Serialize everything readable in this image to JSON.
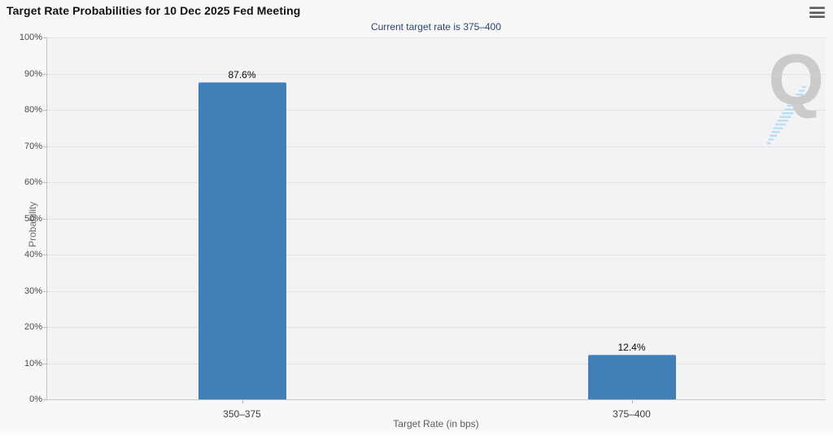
{
  "header": {
    "title": "Target Rate Probabilities for 10 Dec 2025 Fed Meeting",
    "menu_icon": "hamburger-menu"
  },
  "subtitle": "Current target rate is 375–400",
  "watermark_letter": "Q",
  "colors": {
    "bar": "#4080b8",
    "title_text": "#111111",
    "subtitle_text": "#2e4272",
    "axis_text": "#4a4a4a",
    "grid": "#d2d2d5",
    "plot_bg": "#f3f3f5",
    "page_bg": "#f8f8f9",
    "watermark_gray": "#cbcbcd",
    "watermark_blue": "#b9def3"
  },
  "chart_data": {
    "type": "bar",
    "title": "Target Rate Probabilities for 10 Dec 2025 Fed Meeting",
    "subtitle": "Current target rate is 375–400",
    "categories": [
      "350–375",
      "375–400"
    ],
    "values": [
      87.6,
      12.4
    ],
    "value_labels": [
      "87.6%",
      "12.4%"
    ],
    "xlabel": "Target Rate (in bps)",
    "ylabel": "Probability",
    "ylim": [
      0,
      100
    ],
    "ytick_step": 10,
    "ytick_labels": [
      "0%",
      "10%",
      "20%",
      "30%",
      "40%",
      "50%",
      "60%",
      "70%",
      "80%",
      "90%",
      "100%"
    ],
    "grid": "horizontal-dotted",
    "legend_position": "none",
    "bar_color": "#4080b8"
  }
}
